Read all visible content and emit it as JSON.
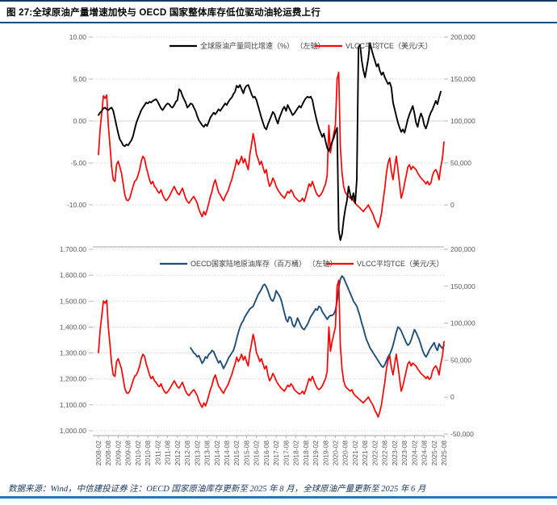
{
  "page": {
    "title": "图 27:全球原油产量增速加快与 OECD 国家整体库存低位驱动油轮运费上行",
    "footer": "数据来源：Wind，中信建投证券 注：OECD 国家原油库存更新至 2025 年 8 月，全球原油产量更新至 2025 年 6 月"
  },
  "colors": {
    "rule_dark_blue": "#17375E",
    "rule_steel_blue": "#2E74B5",
    "production_line": "#000000",
    "vlcc_line": "#FF0000",
    "inventory_line": "#1F4E79",
    "grid": "#C9C9C9",
    "axis": "#A6A6A6",
    "tick_text": "#595959",
    "legend_text": "#404040"
  },
  "x_axis": {
    "start": "2008-02",
    "months_per_tick": 6,
    "tick_labels": [
      "2008-02",
      "2008-08",
      "2009-02",
      "2009-08",
      "2010-02",
      "2010-08",
      "2011-02",
      "2011-08",
      "2012-02",
      "2012-08",
      "2013-02",
      "2013-08",
      "2014-02",
      "2014-08",
      "2015-02",
      "2015-08",
      "2016-02",
      "2016-08",
      "2017-02",
      "2017-08",
      "2018-02",
      "2018-08",
      "2019-02",
      "2019-08",
      "2020-02",
      "2020-08",
      "2021-02",
      "2021-08",
      "2022-02",
      "2022-08",
      "2023-02",
      "2023-08",
      "2024-02",
      "2024-08",
      "2025-02",
      "2025-08"
    ]
  },
  "series_data": {
    "production_yoy": {
      "name": "全球原油产量同比增速（%）",
      "unit": "%",
      "start_month": "2008-02",
      "values": [
        0.7,
        1.0,
        1.2,
        1.5,
        1.6,
        1.4,
        1.3,
        1.5,
        1.6,
        1.2,
        0.3,
        -0.6,
        -1.5,
        -2.2,
        -2.5,
        -2.9,
        -3.0,
        -2.8,
        -2.9,
        -2.6,
        -2.3,
        -1.8,
        -1.0,
        -0.2,
        0.3,
        0.8,
        1.3,
        1.6,
        1.9,
        2.2,
        2.1,
        2.3,
        2.2,
        2.4,
        2.5,
        2.6,
        2.3,
        1.9,
        1.5,
        1.3,
        1.6,
        1.9,
        2.1,
        2.0,
        1.7,
        1.6,
        1.9,
        2.3,
        2.5,
        3.8,
        3.6,
        3.0,
        2.6,
        2.2,
        1.6,
        1.8,
        2.1,
        2.0,
        1.6,
        1.2,
        0.6,
        0.1,
        -0.2,
        -0.5,
        -0.7,
        -0.4,
        -0.6,
        -0.1,
        0.4,
        0.7,
        1.0,
        0.8,
        1.1,
        1.4,
        1.2,
        1.5,
        1.8,
        2.1,
        1.9,
        2.3,
        2.6,
        2.8,
        3.2,
        3.5,
        4.2,
        4.0,
        4.3,
        3.8,
        3.3,
        3.9,
        4.2,
        4.3,
        3.8,
        3.2,
        2.8,
        2.9,
        2.5,
        1.8,
        1.1,
        0.4,
        -0.2,
        -0.8,
        -1.0,
        -0.4,
        0.1,
        0.6,
        1.1,
        0.8,
        0.2,
        -0.3,
        0.4,
        0.9,
        1.4,
        1.7,
        1.2,
        1.9,
        1.5,
        1.1,
        0.7,
        0.9,
        1.2,
        1.5,
        1.8,
        1.6,
        2.0,
        2.4,
        2.7,
        2.9,
        2.8,
        2.9,
        2.5,
        1.5,
        0.6,
        -0.2,
        -0.9,
        -1.4,
        -1.9,
        -1.5,
        -2.4,
        -3.2,
        -3.6,
        -3.0,
        -2.5,
        -2.0,
        -1.3,
        -0.8,
        -13.0,
        -14.2,
        -13.5,
        -11.8,
        -10.5,
        -9.5,
        -7.8,
        -8.8,
        -9.4,
        -8.6,
        -9.8,
        -7.0,
        8.8,
        9.1,
        7.2,
        6.0,
        5.2,
        6.3,
        7.5,
        9.3,
        8.5,
        7.8,
        7.2,
        6.5,
        6.8,
        6.0,
        5.5,
        5.8,
        5.2,
        4.8,
        4.4,
        4.6,
        4.0,
        2.2,
        1.4,
        0.6,
        -0.2,
        -0.8,
        -1.3,
        -1.0,
        -1.4,
        -0.6,
        0.2,
        0.8,
        1.3,
        1.8,
        0.9,
        -0.2,
        -0.7,
        0.3,
        0.9,
        0.4,
        -0.5,
        -0.9,
        -0.3,
        0.5,
        1.0,
        1.4,
        1.9,
        2.4,
        2.0,
        2.8,
        3.5
      ]
    },
    "vlcc_tce": {
      "name": "VLCC平均TCE（美元/天）",
      "unit": "USD/day",
      "start_month": "2008-02",
      "values": [
        60000,
        90000,
        110000,
        130000,
        127000,
        131000,
        95000,
        70000,
        45000,
        30000,
        28000,
        48000,
        52000,
        45000,
        38000,
        25000,
        12000,
        6000,
        5000,
        8000,
        15000,
        22000,
        28000,
        30000,
        35000,
        42000,
        52000,
        58000,
        55000,
        45000,
        38000,
        30000,
        25000,
        28000,
        22000,
        20000,
        16000,
        14000,
        18000,
        12000,
        8000,
        5000,
        7000,
        10000,
        14000,
        18000,
        22000,
        18000,
        14000,
        12000,
        16000,
        20000,
        14000,
        8000,
        4000,
        2000,
        5000,
        8000,
        10000,
        6000,
        2000,
        -5000,
        -10000,
        -14000,
        -8000,
        -12000,
        -6000,
        2000,
        10000,
        16000,
        25000,
        30000,
        22000,
        15000,
        12000,
        8000,
        5000,
        10000,
        14000,
        18000,
        25000,
        30000,
        38000,
        45000,
        54000,
        48000,
        52000,
        58000,
        50000,
        55000,
        48000,
        42000,
        60000,
        72000,
        85000,
        75000,
        60000,
        55000,
        48000,
        52000,
        45000,
        38000,
        42000,
        30000,
        22000,
        26000,
        32000,
        28000,
        22000,
        18000,
        15000,
        12000,
        10000,
        8000,
        12000,
        16000,
        14000,
        18000,
        15000,
        10000,
        8000,
        6000,
        4000,
        5000,
        8000,
        4000,
        10000,
        18000,
        25000,
        22000,
        28000,
        22000,
        16000,
        12000,
        10000,
        12000,
        15000,
        20000,
        25000,
        35000,
        95000,
        62000,
        75000,
        85000,
        95000,
        150000,
        158000,
        70000,
        38000,
        22000,
        15000,
        12000,
        10000,
        8000,
        10000,
        5000,
        2000,
        0,
        -2000,
        -4000,
        -6000,
        -8000,
        -5000,
        -3000,
        0,
        -4000,
        -8000,
        -12000,
        -18000,
        -22000,
        -27000,
        -20000,
        -10000,
        5000,
        20000,
        38000,
        50000,
        56000,
        40000,
        30000,
        45000,
        58000,
        42000,
        25000,
        8000,
        15000,
        25000,
        35000,
        45000,
        48000,
        42000,
        46000,
        44000,
        42000,
        38000,
        35000,
        32000,
        30000,
        28000,
        25000,
        28000,
        24000,
        26000,
        35000,
        40000,
        42000,
        38000,
        30000,
        45000,
        55000,
        75000
      ]
    },
    "oecd_inventory": {
      "name": "OECD国家陆地原油库存（百万桶）",
      "unit": "million barrels",
      "start_month": "2012-10",
      "values": [
        1320,
        1310,
        1300,
        1295,
        1285,
        1290,
        1275,
        1260,
        1270,
        1285,
        1280,
        1295,
        1300,
        1310,
        1305,
        1290,
        1275,
        1262,
        1270,
        1255,
        1240,
        1252,
        1265,
        1280,
        1290,
        1300,
        1310,
        1330,
        1355,
        1380,
        1400,
        1415,
        1425,
        1440,
        1450,
        1460,
        1470,
        1475,
        1480,
        1495,
        1510,
        1525,
        1535,
        1545,
        1560,
        1565,
        1555,
        1540,
        1520,
        1505,
        1500,
        1515,
        1540,
        1530,
        1520,
        1505,
        1480,
        1455,
        1430,
        1420,
        1440,
        1435,
        1410,
        1400,
        1415,
        1435,
        1420,
        1405,
        1395,
        1390,
        1400,
        1410,
        1425,
        1440,
        1450,
        1460,
        1470,
        1465,
        1480,
        1475,
        1460,
        1450,
        1440,
        1430,
        1440,
        1445,
        1445,
        1450,
        1465,
        1500,
        1550,
        1585,
        1597,
        1590,
        1575,
        1560,
        1545,
        1530,
        1515,
        1500,
        1490,
        1480,
        1460,
        1440,
        1415,
        1395,
        1370,
        1350,
        1335,
        1320,
        1310,
        1300,
        1290,
        1280,
        1270,
        1260,
        1250,
        1245,
        1255,
        1270,
        1285,
        1295,
        1310,
        1330,
        1355,
        1380,
        1400,
        1395,
        1385,
        1370,
        1355,
        1340,
        1330,
        1335,
        1350,
        1370,
        1390,
        1380,
        1365,
        1350,
        1330,
        1310,
        1295,
        1285,
        1295,
        1310,
        1320,
        1330,
        1340,
        1320,
        1310,
        1335,
        1325,
        1318,
        1330
      ]
    }
  },
  "chart_data": [
    {
      "type": "line",
      "title": "",
      "legend": [
        {
          "label": "全球原油产量同比增速（%） （左轴）",
          "color": "#000000"
        },
        {
          "label": "VLCC平均TCE（美元/天）",
          "color": "#FF0000"
        }
      ],
      "legend_position": "top-inside",
      "grid": true,
      "left_axis": {
        "tick_labels": [
          "10.00",
          "5.00",
          "0.00",
          "-5.00",
          "-10.00"
        ],
        "tick_values": [
          10,
          5,
          0,
          -5,
          -10
        ],
        "max": 10,
        "min": -15
      },
      "right_axis": {
        "tick_labels": [
          "200,000",
          "150,000",
          "100,000",
          "50,000",
          "0"
        ],
        "tick_values": [
          200000,
          150000,
          100000,
          50000,
          0
        ],
        "max": 200000,
        "min": -50000
      },
      "series": [
        {
          "data_key": "vlcc_tce",
          "axis": "right",
          "color": "#FF0000",
          "width": 1.7
        },
        {
          "data_key": "production_yoy",
          "axis": "left",
          "color": "#000000",
          "width": 1.9
        }
      ]
    },
    {
      "type": "line",
      "title": "",
      "legend": [
        {
          "label": "OECD国家陆地原油库存（百万桶） （左轴）",
          "color": "#1F4E79"
        },
        {
          "label": "VLCC平均TCE（美元/天）",
          "color": "#FF0000"
        }
      ],
      "legend_position": "top-inside",
      "grid": true,
      "left_axis": {
        "tick_labels": [
          "1,700.00",
          "1,600.00",
          "1,500.00",
          "1,400.00",
          "1,300.00",
          "1,200.00",
          "1,100.00",
          "1,000.00"
        ],
        "tick_values": [
          1700,
          1600,
          1500,
          1400,
          1300,
          1200,
          1100,
          1000
        ],
        "max": 1700,
        "min": 1000
      },
      "right_axis": {
        "tick_labels": [
          "200,000",
          "150,000",
          "100,000",
          "50,000",
          "0",
          "-50,000"
        ],
        "tick_values": [
          200000,
          150000,
          100000,
          50000,
          0,
          -50000
        ],
        "max": 200000,
        "min": -50000
      },
      "series": [
        {
          "data_key": "oecd_inventory",
          "axis": "left",
          "color": "#1F4E79",
          "width": 1.9
        },
        {
          "data_key": "vlcc_tce",
          "axis": "right",
          "color": "#FF0000",
          "width": 1.7
        }
      ]
    }
  ]
}
